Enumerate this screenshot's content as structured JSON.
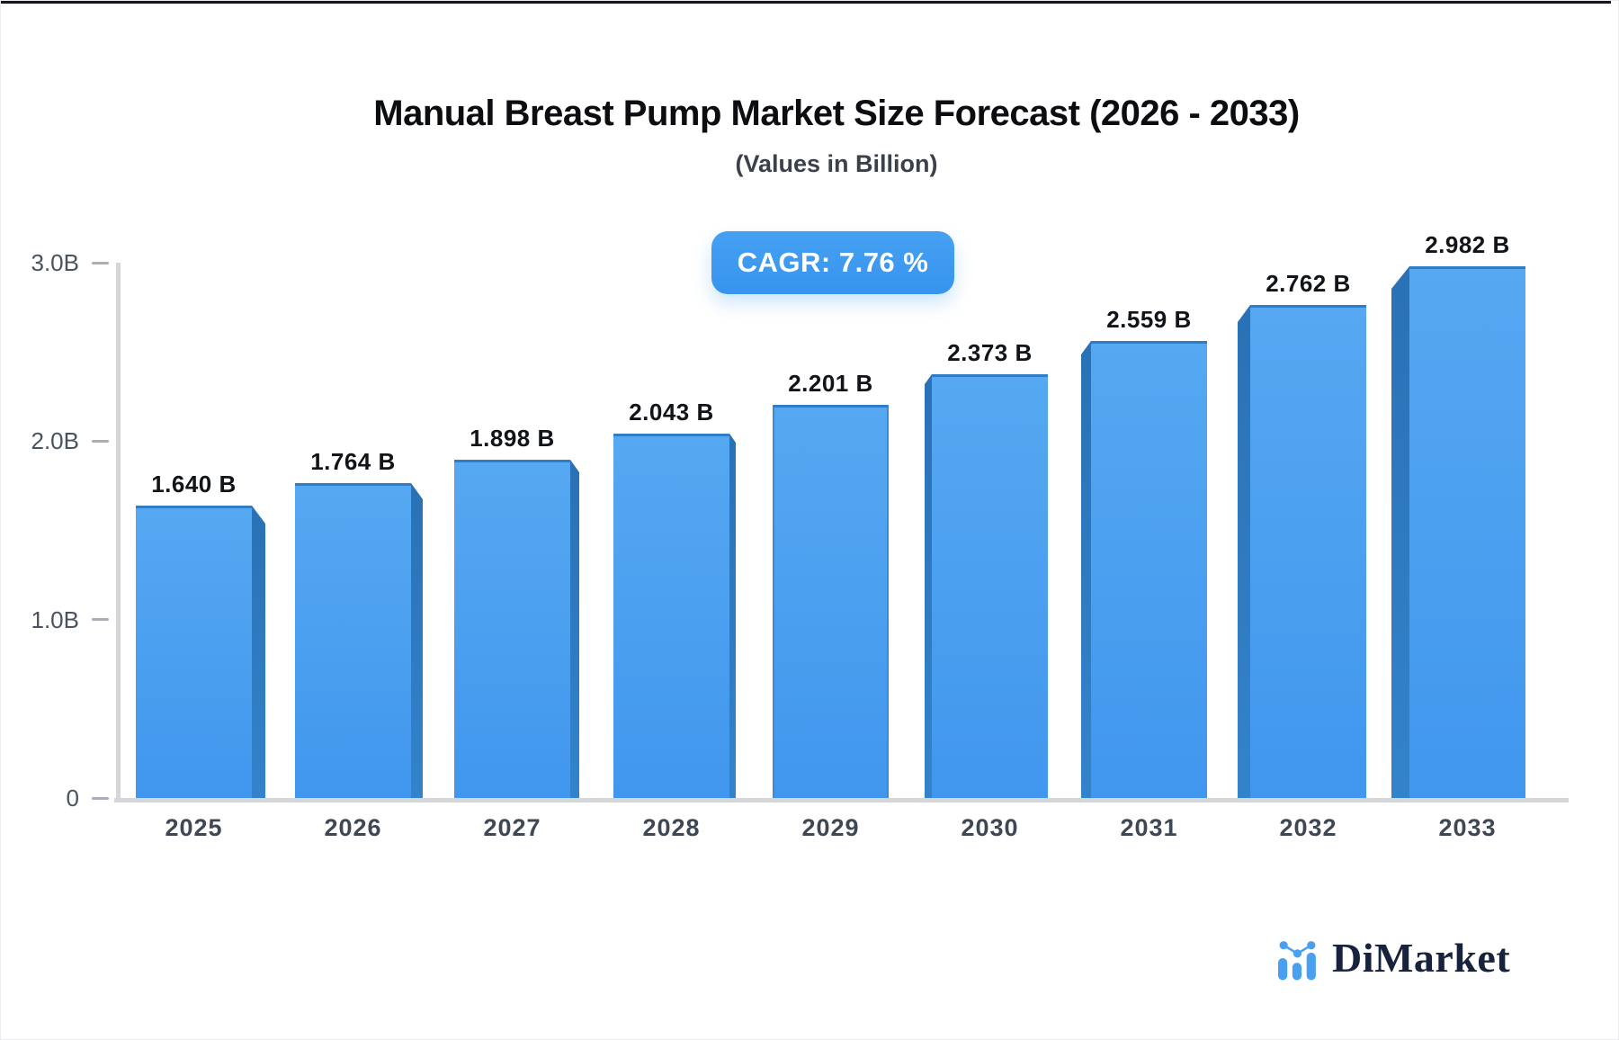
{
  "header": {
    "title": "Manual Breast Pump Market Size Forecast (2026 - 2033)",
    "subtitle": "(Values in Billion)"
  },
  "badge": {
    "label": "CAGR: 7.76 %",
    "color": "#3d9af0"
  },
  "chart_data": {
    "type": "bar",
    "title": "Manual Breast Pump Market Size Forecast (2026 - 2033)",
    "subtitle": "(Values in Billion)",
    "categories": [
      "2025",
      "2026",
      "2027",
      "2028",
      "2029",
      "2030",
      "2031",
      "2032",
      "2033"
    ],
    "values": [
      1.64,
      1.764,
      1.898,
      2.043,
      2.201,
      2.373,
      2.559,
      2.762,
      2.982
    ],
    "value_labels": [
      "1.640 B",
      "1.764 B",
      "1.898 B",
      "2.043 B",
      "2.201 B",
      "2.373 B",
      "2.559 B",
      "2.762 B",
      "2.982 B"
    ],
    "unit": "Billion",
    "xlabel": "",
    "ylabel": "",
    "ylim": [
      0,
      3.0
    ],
    "y_ticks": [
      {
        "label": "3.0B",
        "value": 3.0
      },
      {
        "label": "2.0B",
        "value": 2.0
      },
      {
        "label": "1.0B",
        "value": 1.0
      },
      {
        "label": "0",
        "value": 0.0
      }
    ],
    "grid": false,
    "legend": "none",
    "style": "3d-perspective-bars",
    "colors": {
      "bar_face": "#4aa0ef",
      "bar_face_top_edge": "#2e7dc6",
      "bar_side": "#2f7dc4",
      "axis_line": "#d5d6da",
      "tick_dash": "#a8aeb8",
      "value_label_text": "#111418",
      "year_label_text": "#3e4754",
      "ytick_text": "#49525f"
    }
  },
  "footer": {
    "logo_text": "DiMarket",
    "logo_icon": "bar-chart-with-trendline-icon",
    "logo_accent_color": "#4aa0f0",
    "logo_text_color": "#17233c"
  }
}
